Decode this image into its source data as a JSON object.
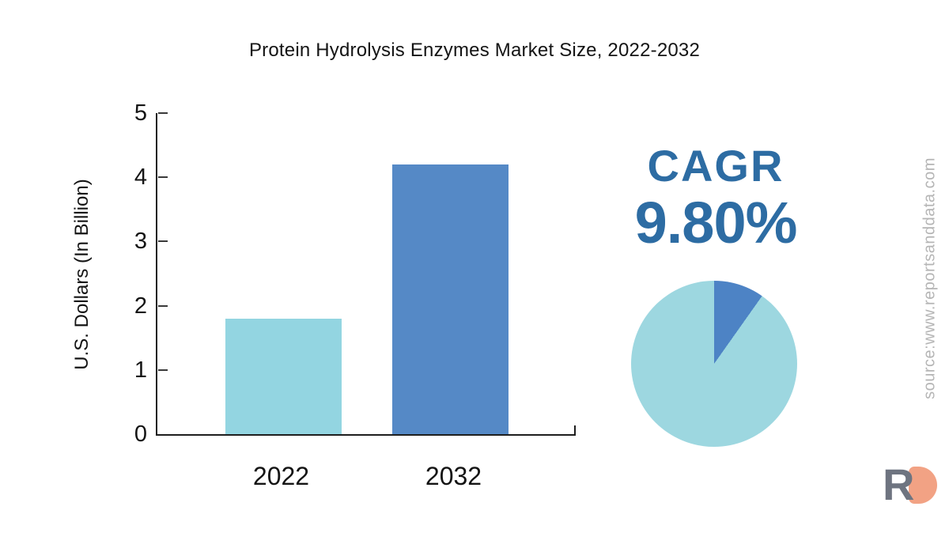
{
  "title": "Protein Hydrolysis Enzymes Market Size, 2022-2032",
  "source": "source:www.reportsanddata.com",
  "cagr": {
    "label": "CAGR",
    "value": "9.80%",
    "color": "#2d6ca3"
  },
  "logo": {
    "letter_r": "R",
    "d_color": "#f2a284",
    "r_color": "#6e7480"
  },
  "chart_data": [
    {
      "type": "bar",
      "title": "Protein Hydrolysis Enzymes Market Size, 2022-2032",
      "categories": [
        "2022",
        "2032"
      ],
      "values": [
        1.8,
        4.2
      ],
      "xlabel": "",
      "ylabel": "U.S. Dollars (In Billion)",
      "ylim": [
        0,
        5
      ],
      "yticks": [
        0,
        1,
        2,
        3,
        4,
        5
      ],
      "bar_colors": [
        "#93d5e1",
        "#5589c6"
      ],
      "grid": false,
      "legend": false
    },
    {
      "type": "pie",
      "title": "CAGR 9.80%",
      "slices": [
        {
          "label": "CAGR",
          "value": 9.8,
          "color": "#4d83c5"
        },
        {
          "label": "Remaining",
          "value": 90.2,
          "color": "#9dd7e0"
        }
      ],
      "start_angle_deg": 0,
      "direction": "clockwise",
      "legend": false
    }
  ]
}
